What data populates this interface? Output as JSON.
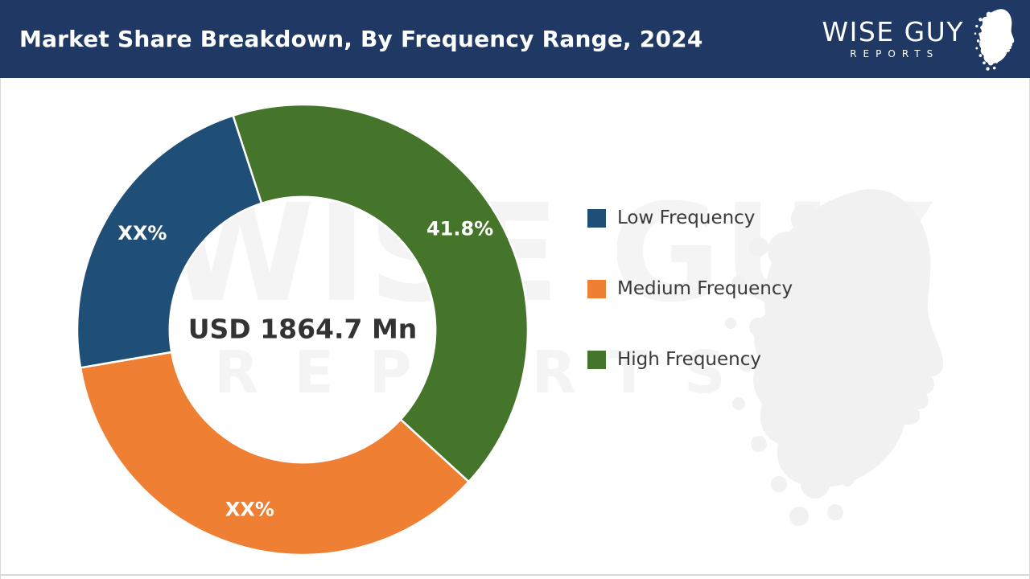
{
  "header": {
    "title": "Market Share Breakdown, By Frequency Range, 2024",
    "background_color": "#1f3864",
    "logo": {
      "line1": "WISE GUY",
      "line2": "REPORTS",
      "head_icon": "dotted-head-profile-icon"
    }
  },
  "watermark": {
    "line1": "WISE GUY",
    "line2": "REPORTS",
    "color": "#f3f3f3"
  },
  "chart_data": {
    "type": "pie",
    "subtype": "donut",
    "title": "Market Share Breakdown, By Frequency Range, 2024",
    "center_label": "USD 1864.7 Mn",
    "unit": "percent of market share",
    "start_angle_deg": 108,
    "direction": "clockwise",
    "inner_radius_ratio": 0.59,
    "draw_order": [
      "High Frequency",
      "Medium Frequency",
      "Low Frequency"
    ],
    "slices": [
      {
        "name": "Low Frequency",
        "color": "#1f4e77",
        "value": 22.7,
        "label": "XX%"
      },
      {
        "name": "Medium Frequency",
        "color": "#ee7f33",
        "value": 35.5,
        "label": "XX%"
      },
      {
        "name": "High Frequency",
        "color": "#44752a",
        "value": 41.8,
        "label": "41.8%"
      }
    ],
    "legend": {
      "position": "right",
      "order": [
        "Low Frequency",
        "Medium Frequency",
        "High Frequency"
      ]
    }
  }
}
